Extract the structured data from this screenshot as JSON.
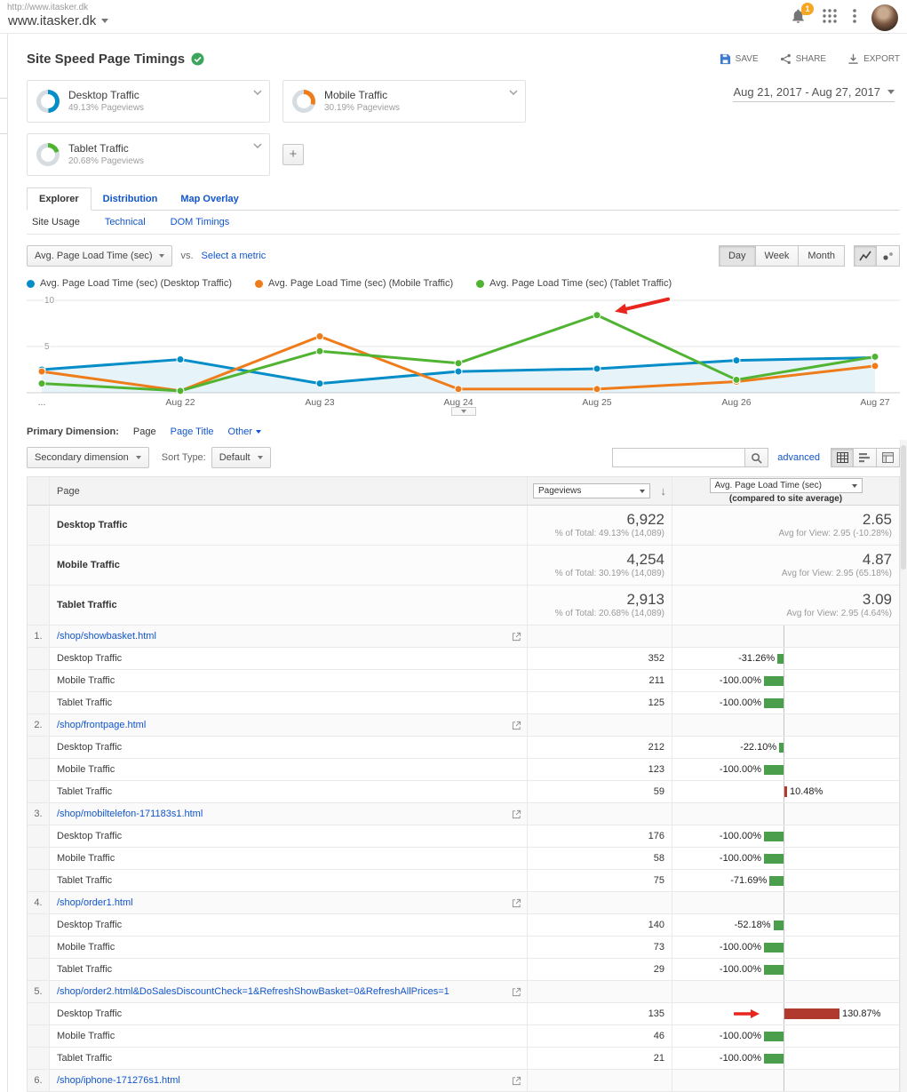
{
  "topbar": {
    "url_small": "http://www.itasker.dk",
    "account": "www.itasker.dk",
    "notification_count": "1"
  },
  "header": {
    "title": "Site Speed Page Timings",
    "actions": {
      "save": "SAVE",
      "share": "SHARE",
      "export": "EXPORT"
    },
    "date_range": "Aug 21, 2017 - Aug 27, 2017"
  },
  "segments": [
    {
      "name": "Desktop Traffic",
      "detail": "49.13% Pageviews",
      "color": "#058dc7",
      "pct": 49.13
    },
    {
      "name": "Mobile Traffic",
      "detail": "30.19% Pageviews",
      "color": "#ef7c1b",
      "pct": 30.19
    },
    {
      "name": "Tablet Traffic",
      "detail": "20.68% Pageviews",
      "color": "#50b432",
      "pct": 20.68
    }
  ],
  "tabs": [
    "Explorer",
    "Distribution",
    "Map Overlay"
  ],
  "subtabs": [
    "Site Usage",
    "Technical",
    "DOM Timings"
  ],
  "metric_bar": {
    "metric": "Avg. Page Load Time (sec)",
    "vs_label": "vs.",
    "select_metric": "Select a metric",
    "granularity": [
      "Day",
      "Week",
      "Month"
    ],
    "active_granularity": "Day"
  },
  "chart_data": {
    "type": "line",
    "title": "Avg. Page Load Time (sec) by day",
    "x": [
      "Aug 21",
      "Aug 22",
      "Aug 23",
      "Aug 24",
      "Aug 25",
      "Aug 26",
      "Aug 27"
    ],
    "x_tick_labels": [
      "...",
      "Aug 22",
      "Aug 23",
      "Aug 24",
      "Aug 25",
      "Aug 26",
      "Aug 27"
    ],
    "ylim": [
      0,
      10
    ],
    "yticks": [
      5,
      10
    ],
    "grid": "horizontal",
    "legend_position": "top",
    "series": [
      {
        "name": "Avg. Page Load Time (sec) (Desktop Traffic)",
        "color": "#058dc7",
        "area": true,
        "values": [
          2.5,
          3.6,
          1.0,
          2.3,
          2.6,
          3.5,
          3.8
        ]
      },
      {
        "name": "Avg. Page Load Time (sec) (Mobile Traffic)",
        "color": "#ef7c1b",
        "area": false,
        "values": [
          2.3,
          0.2,
          6.1,
          0.4,
          0.4,
          1.2,
          2.9
        ]
      },
      {
        "name": "Avg. Page Load Time (sec) (Tablet Traffic)",
        "color": "#50b432",
        "area": false,
        "values": [
          1.0,
          0.2,
          4.5,
          3.2,
          8.4,
          1.4,
          3.9
        ]
      }
    ],
    "annotations": [
      {
        "type": "arrow",
        "color": "#e8261d",
        "target": "Tablet Traffic peak on Aug 25",
        "series": 2,
        "point": 4
      }
    ]
  },
  "dimension_bar": {
    "label": "Primary Dimension:",
    "options": [
      "Page",
      "Page Title",
      "Other"
    ]
  },
  "table_controls": {
    "secondary_dimension": "Secondary dimension",
    "sort_label": "Sort Type:",
    "sort_value": "Default",
    "advanced": "advanced",
    "search_value": ""
  },
  "table": {
    "headers": {
      "page": "Page",
      "pageviews": "Pageviews",
      "metric": "Avg. Page Load Time (sec)",
      "metric_sub": "(compared to site average)"
    },
    "summary": [
      {
        "label": "Desktop Traffic",
        "pageviews": "6,922",
        "pv_sub": "% of Total: 49.13% (14,089)",
        "value": "2.65",
        "val_sub": "Avg for View: 2.95 (-10.28%)"
      },
      {
        "label": "Mobile Traffic",
        "pageviews": "4,254",
        "pv_sub": "% of Total: 30.19% (14,089)",
        "value": "4.87",
        "val_sub": "Avg for View: 2.95 (65.18%)"
      },
      {
        "label": "Tablet Traffic",
        "pageviews": "2,913",
        "pv_sub": "% of Total: 20.68% (14,089)",
        "value": "3.09",
        "val_sub": "Avg for View: 2.95 (4.64%)"
      }
    ],
    "rows": [
      {
        "index": "1.",
        "page": "/shop/showbasket.html",
        "segments": [
          {
            "label": "Desktop Traffic",
            "pageviews": "352",
            "delta": -31.26,
            "delta_label": "-31.26%"
          },
          {
            "label": "Mobile Traffic",
            "pageviews": "211",
            "delta": -100,
            "delta_label": "-100.00%"
          },
          {
            "label": "Tablet Traffic",
            "pageviews": "125",
            "delta": -100,
            "delta_label": "-100.00%"
          }
        ]
      },
      {
        "index": "2.",
        "page": "/shop/frontpage.html",
        "segments": [
          {
            "label": "Desktop Traffic",
            "pageviews": "212",
            "delta": -22.1,
            "delta_label": "-22.10%"
          },
          {
            "label": "Mobile Traffic",
            "pageviews": "123",
            "delta": -100,
            "delta_label": "-100.00%"
          },
          {
            "label": "Tablet Traffic",
            "pageviews": "59",
            "delta": 10.48,
            "delta_label": "10.48%"
          }
        ]
      },
      {
        "index": "3.",
        "page": "/shop/mobiltelefon-171183s1.html",
        "segments": [
          {
            "label": "Desktop Traffic",
            "pageviews": "176",
            "delta": -100,
            "delta_label": "-100.00%"
          },
          {
            "label": "Mobile Traffic",
            "pageviews": "58",
            "delta": -100,
            "delta_label": "-100.00%"
          },
          {
            "label": "Tablet Traffic",
            "pageviews": "75",
            "delta": -71.69,
            "delta_label": "-71.69%"
          }
        ]
      },
      {
        "index": "4.",
        "page": "/shop/order1.html",
        "segments": [
          {
            "label": "Desktop Traffic",
            "pageviews": "140",
            "delta": -52.18,
            "delta_label": "-52.18%"
          },
          {
            "label": "Mobile Traffic",
            "pageviews": "73",
            "delta": -100,
            "delta_label": "-100.00%"
          },
          {
            "label": "Tablet Traffic",
            "pageviews": "29",
            "delta": -100,
            "delta_label": "-100.00%"
          }
        ]
      },
      {
        "index": "5.",
        "page": "/shop/order2.html&DoSalesDiscountCheck=1&RefreshShowBasket=0&RefreshAllPrices=1",
        "segments": [
          {
            "label": "Desktop Traffic",
            "pageviews": "135",
            "delta": 130.87,
            "delta_label": "130.87%",
            "annotated": true
          },
          {
            "label": "Mobile Traffic",
            "pageviews": "46",
            "delta": -100,
            "delta_label": "-100.00%"
          },
          {
            "label": "Tablet Traffic",
            "pageviews": "21",
            "delta": -100,
            "delta_label": "-100.00%"
          }
        ]
      },
      {
        "index": "6.",
        "page": "/shop/iphone-171276s1.html",
        "segments": []
      }
    ]
  }
}
